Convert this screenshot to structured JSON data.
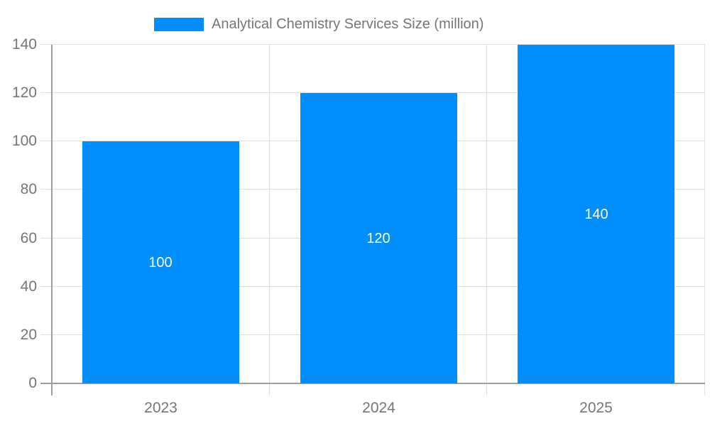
{
  "legend": {
    "label": "Analytical Chemistry Services Size (million)"
  },
  "colors": {
    "bar": "#008FFB",
    "grid": "#e0e0e0",
    "axis": "#9e9e9e",
    "tick_label": "#757575",
    "data_label": "#ffffff",
    "background": "#ffffff"
  },
  "chart_data": {
    "type": "bar",
    "title": "",
    "xlabel": "",
    "ylabel": "",
    "categories": [
      "2023",
      "2024",
      "2025"
    ],
    "series": [
      {
        "name": "Analytical Chemistry Services Size (million)",
        "values": [
          100,
          120,
          140
        ]
      }
    ],
    "data_labels": [
      100,
      120,
      140
    ],
    "ylim": [
      0,
      140
    ],
    "yticks": [
      0,
      20,
      40,
      60,
      80,
      100,
      120,
      140
    ],
    "grid": true,
    "legend_position": "top"
  }
}
